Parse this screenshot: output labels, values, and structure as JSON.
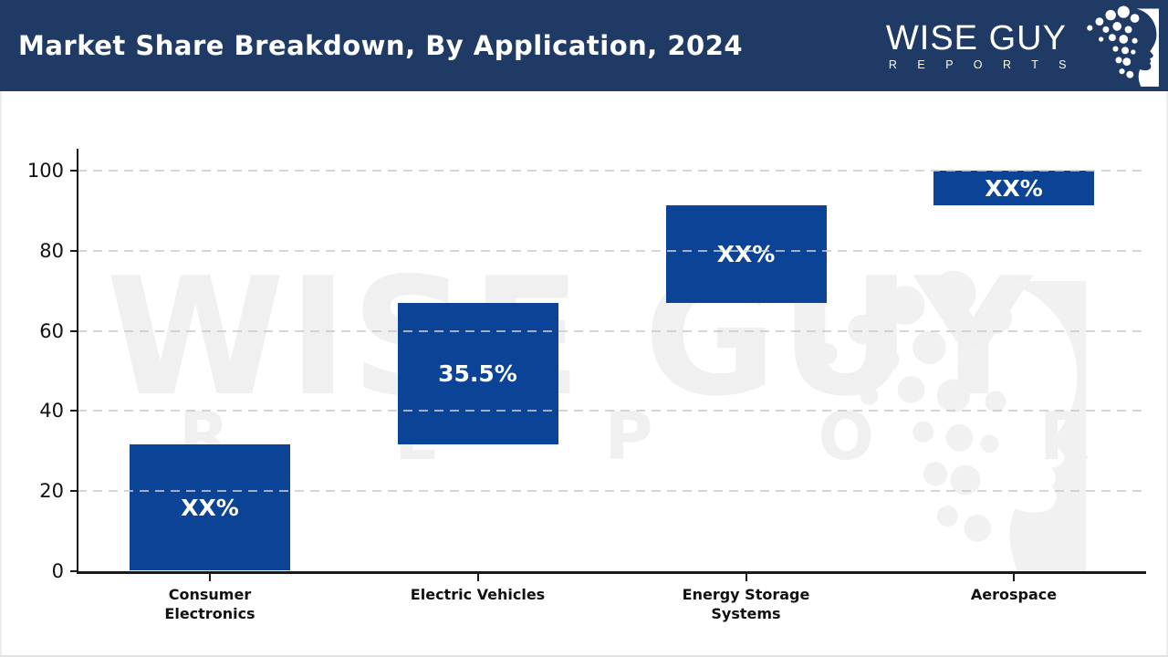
{
  "header": {
    "title": "Market Share Breakdown, By Application, 2024",
    "logo": {
      "name": "WISE GUY",
      "sub": "R E P O R T S"
    },
    "bg_color": "#1f3a64"
  },
  "watermark": {
    "line1": "WISE GUY",
    "line2": "R E P O R T S"
  },
  "chart_data": {
    "type": "bar",
    "subtype": "waterfall",
    "title": "Market Share Breakdown, By Application, 2024",
    "xlabel": "",
    "ylabel": "",
    "ylim": [
      0,
      105
    ],
    "yticks": [
      0,
      20,
      40,
      60,
      80,
      100
    ],
    "grid": true,
    "grid_style": "dashed",
    "legend": "none",
    "bar_color": "#0b4397",
    "categories": [
      "Consumer Electronics",
      "Electric Vehicles",
      "Energy Storage Systems",
      "Aerospace"
    ],
    "category_lines": [
      [
        "Consumer",
        "Electronics"
      ],
      [
        "Electric Vehicles"
      ],
      [
        "Energy Storage",
        "Systems"
      ],
      [
        "Aerospace"
      ]
    ],
    "segments": [
      {
        "label": "Consumer Electronics",
        "display": "XX%",
        "start": 0,
        "end": 31.6
      },
      {
        "label": "Electric Vehicles",
        "display": "35.5%",
        "start": 31.6,
        "end": 67.1
      },
      {
        "label": "Energy Storage Systems",
        "display": "XX%",
        "start": 67.1,
        "end": 91.5
      },
      {
        "label": "Aerospace",
        "display": "XX%",
        "start": 91.5,
        "end": 100
      }
    ]
  }
}
